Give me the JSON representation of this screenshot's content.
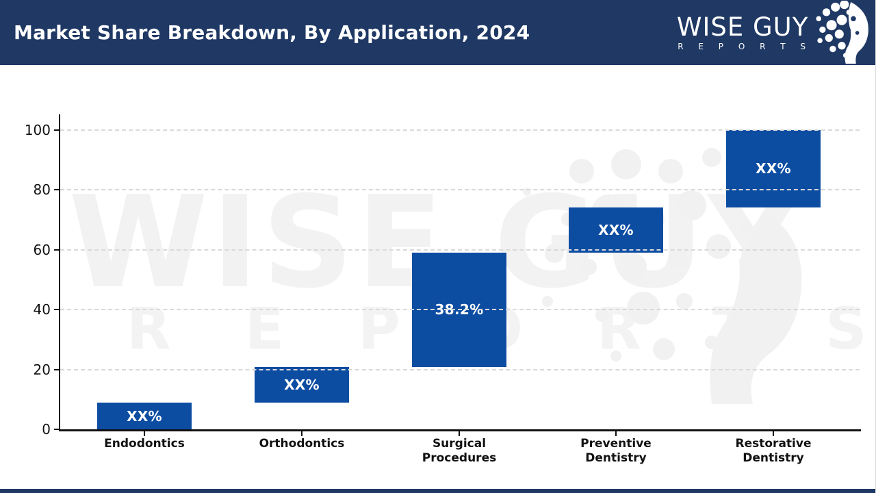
{
  "header": {
    "title": "Market Share Breakdown, By Application, 2024"
  },
  "logo": {
    "name": "WISE GUY",
    "sub": "R E P O R T S"
  },
  "watermark": {
    "line1": "WISE GUY",
    "line2": "REPORTS"
  },
  "colors": {
    "header_bg": "#1f3864",
    "footer_bg": "#1f3864",
    "bar": "#0c4da2",
    "bar_label": "#ffffff",
    "grid": "#d9d9d9",
    "axis": "#111111",
    "watermark": "#f2f2f2"
  },
  "chart_data": {
    "type": "bar",
    "subtype": "floating-waterfall-segments",
    "title": "Market Share Breakdown, By Application, 2024",
    "xlabel": "",
    "ylabel": "",
    "categories": [
      "Endodontics",
      "Orthodontics",
      "Surgical Procedures",
      "Preventive Dentistry",
      "Restorative Dentistry"
    ],
    "bars": [
      {
        "category": "Endodontics",
        "label": "XX%",
        "start": 0,
        "end": 8.9,
        "value_pct": 8.9
      },
      {
        "category": "Orthodontics",
        "label": "XX%",
        "start": 8.9,
        "end": 20.8,
        "value_pct": 11.9
      },
      {
        "category": "Surgical Procedures",
        "label": "38.2%",
        "start": 20.8,
        "end": 59.0,
        "value_pct": 38.2
      },
      {
        "category": "Preventive Dentistry",
        "label": "XX%",
        "start": 59.0,
        "end": 74.0,
        "value_pct": 15.0
      },
      {
        "category": "Restorative Dentistry",
        "label": "XX%",
        "start": 74.0,
        "end": 100.0,
        "value_pct": 26.0
      }
    ],
    "yticks": [
      0,
      20,
      40,
      60,
      80,
      100
    ],
    "ylim": [
      0,
      105
    ],
    "grid": "dashed-horizontal-at-20-40-60-80-100",
    "legend": "none"
  }
}
